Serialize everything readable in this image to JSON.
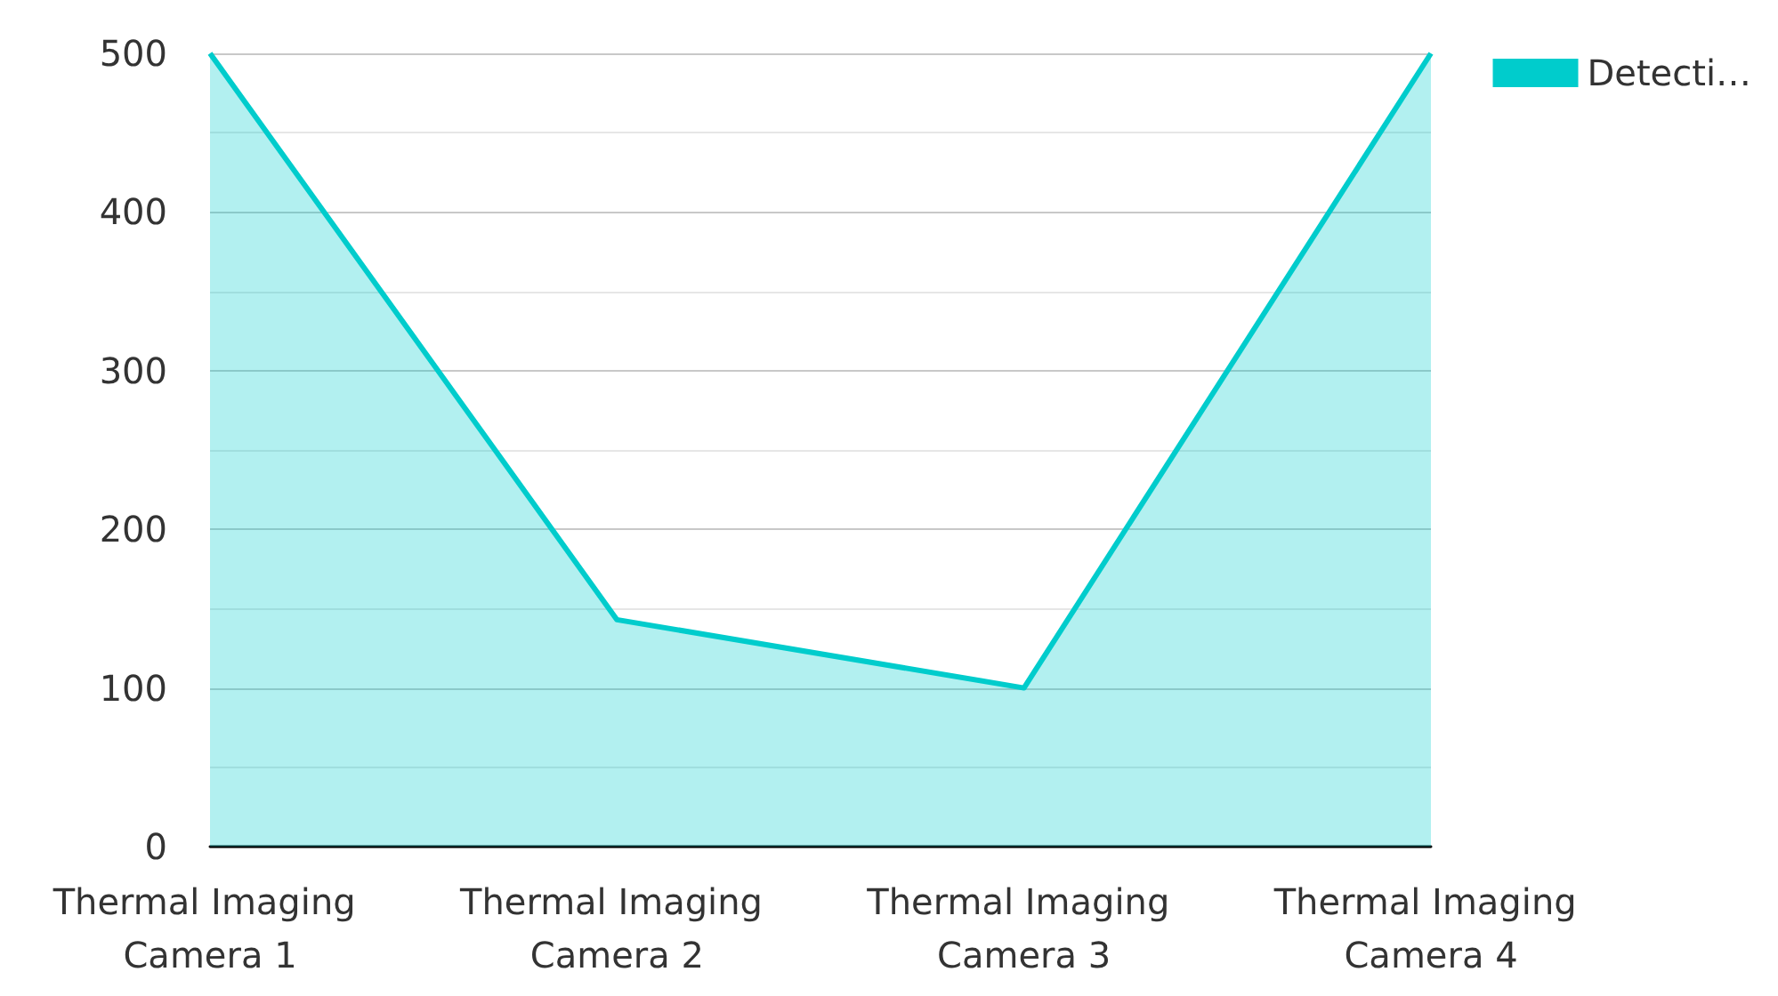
{
  "chart_data": {
    "type": "area",
    "categories": [
      "Thermal Imaging Camera 1",
      "Thermal Imaging Camera 2",
      "Thermal Imaging Camera 3",
      "Thermal Imaging Camera 4"
    ],
    "series": [
      {
        "name": "Detecti…",
        "color": "#00cccc",
        "values": [
          500,
          143,
          100,
          500
        ]
      }
    ],
    "ylim": [
      0,
      500
    ],
    "yticks": [
      0,
      100,
      200,
      300,
      400,
      500
    ],
    "grid": "y",
    "legend": "top right",
    "marker": "none"
  }
}
